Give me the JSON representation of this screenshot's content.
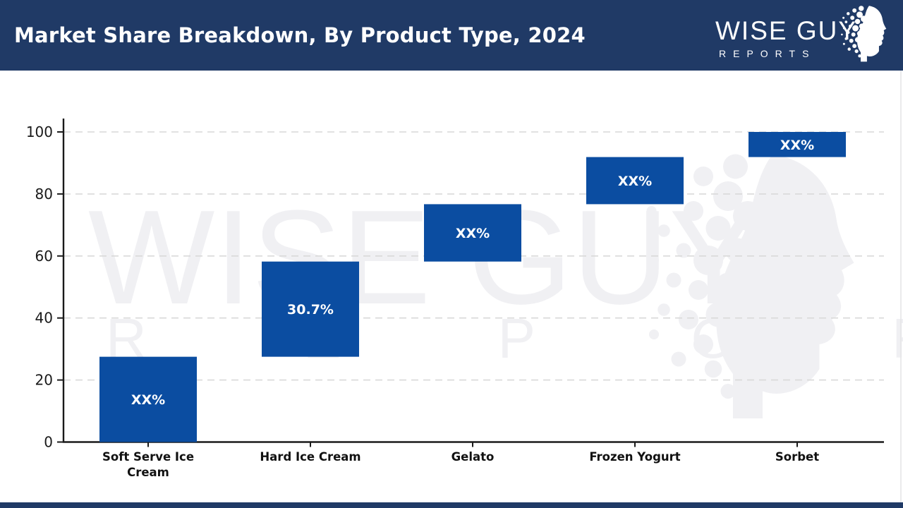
{
  "header": {
    "title": "Market Share Breakdown, By Product Type, 2024",
    "logo": {
      "primary": "WISE GUY",
      "secondary": "REPORTS",
      "icon": "dotted-head-profile-icon"
    }
  },
  "watermark": {
    "primary": "WISE GUY",
    "secondary": "R E P O R T S"
  },
  "chart_data": {
    "type": "bar",
    "subtype": "waterfall-stacked-percentage",
    "title": "Market Share Breakdown, By Product Type, 2024",
    "categories": [
      "Soft Serve Ice Cream",
      "Hard Ice Cream",
      "Gelato",
      "Frozen Yogurt",
      "Sorbet"
    ],
    "segments": [
      {
        "category": "Soft Serve Ice Cream",
        "start": 0,
        "end": 27.5,
        "label": "XX%"
      },
      {
        "category": "Hard Ice Cream",
        "start": 27.5,
        "end": 58.2,
        "value": 30.7,
        "label": "30.7%"
      },
      {
        "category": "Gelato",
        "start": 58.2,
        "end": 76.7,
        "label": "XX%"
      },
      {
        "category": "Frozen Yogurt",
        "start": 76.7,
        "end": 91.9,
        "label": "XX%"
      },
      {
        "category": "Sorbet",
        "start": 91.9,
        "end": 100,
        "label": "XX%"
      }
    ],
    "xlabel": "",
    "ylabel": "",
    "yticks": [
      0,
      20,
      40,
      60,
      80,
      100
    ],
    "ylim": [
      0,
      104
    ],
    "grid": "horizontal-dashed",
    "legend": "none",
    "colors": {
      "bar": "#0b4da1",
      "bar_label": "#ffffff",
      "axis": "#1a1a1a",
      "gridline": "#d9d9d9",
      "header_bg": "#203a66",
      "watermark": "#f0f0f3"
    }
  }
}
